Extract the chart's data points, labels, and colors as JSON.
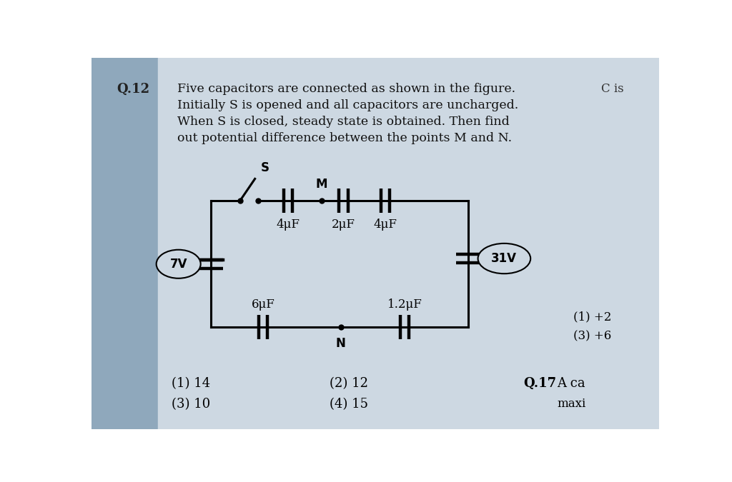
{
  "bg_color_main": "#c8d4e0",
  "bg_color_left": "#a0b4c8",
  "bg_color_right": "#d8e0e8",
  "title_text": "Q.12",
  "question_text_lines": [
    "Five capacitors are connected as shown in the figure.",
    "Initially S is opened and all capacitors are uncharged.",
    "When S is closed, steady state is obtained. Then find",
    "out potential difference between the points M and N."
  ],
  "right_top_text": "C is",
  "options": [
    [
      "(1) 14",
      "(2) 12"
    ],
    [
      "(3) 10",
      "(4) 15"
    ]
  ],
  "q17_text": "Q.17",
  "q17_subtext": "A ca",
  "maxi_text": "maxi",
  "side_options": [
    "(1) +2",
    "(3) +6"
  ],
  "cap_labels_top": [
    "4μF",
    "2μF",
    "4μF"
  ],
  "cap_labels_bottom": [
    "6μF",
    "1.2μF"
  ],
  "battery_left": "7V",
  "battery_right": "31V",
  "node_M": "M",
  "node_N": "N",
  "switch_label": "S"
}
